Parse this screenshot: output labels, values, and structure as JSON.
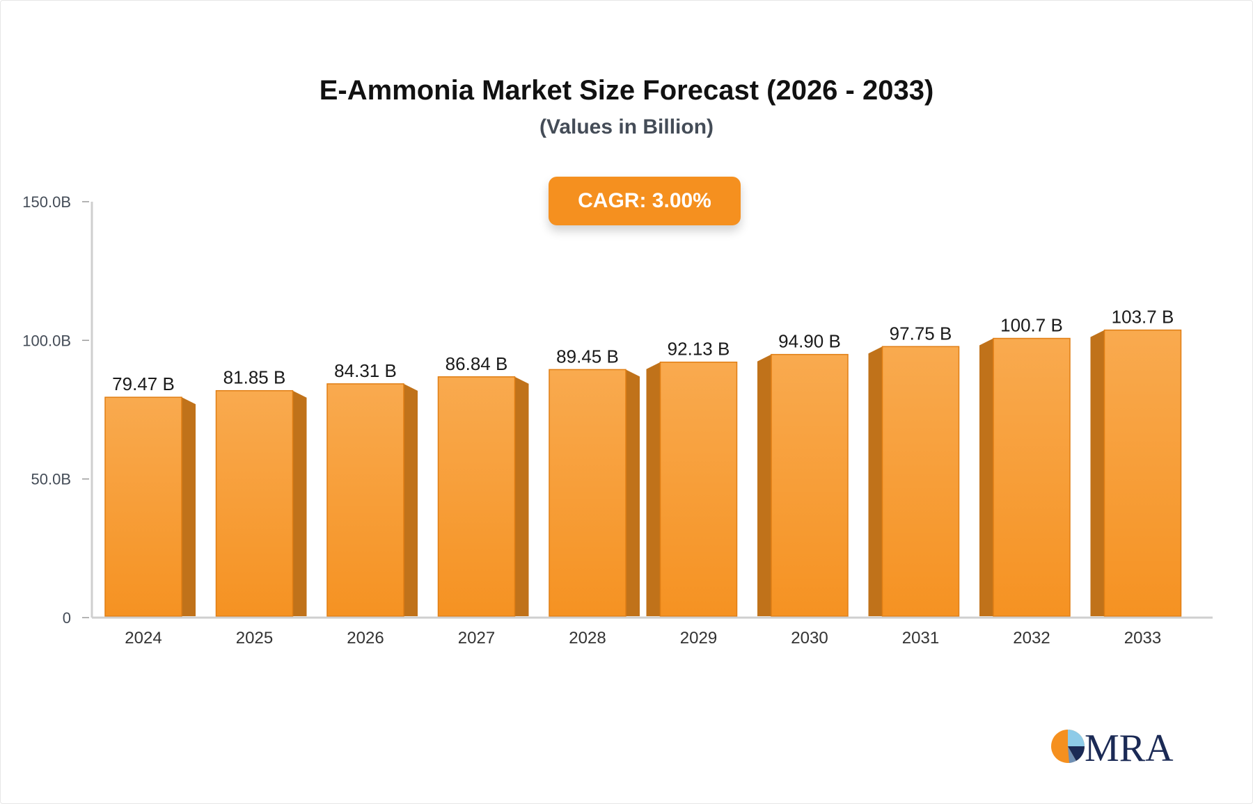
{
  "header": {
    "title": "E-Ammonia Market Size Forecast (2026 - 2033)",
    "subtitle": "(Values in Billion)"
  },
  "badge": {
    "cagr_label": "CAGR: 3.00%"
  },
  "brand": {
    "logo_text": "MRA",
    "colors": {
      "orange": "#f5901f",
      "navy": "#1b2a55",
      "light_blue": "#8ecbe8"
    }
  },
  "chart_data": {
    "type": "bar",
    "categories": [
      "2024",
      "2025",
      "2026",
      "2027",
      "2028",
      "2029",
      "2030",
      "2031",
      "2032",
      "2033"
    ],
    "values": [
      79.47,
      81.85,
      84.31,
      86.84,
      89.45,
      92.13,
      94.9,
      97.75,
      100.7,
      103.7
    ],
    "data_labels": [
      "79.47 B",
      "81.85 B",
      "84.31 B",
      "86.84 B",
      "89.45 B",
      "92.13 B",
      "94.90 B",
      "97.75 B",
      "100.7 B",
      "103.7 B"
    ],
    "y_ticks": [
      0,
      50,
      100,
      150
    ],
    "y_tick_labels": [
      "0",
      "50.0B",
      "100.0B",
      "150.0B"
    ],
    "ylim": [
      0,
      150
    ],
    "grid": false,
    "legend": "none",
    "colors": {
      "bar_top": "#f9aa4f",
      "bar_bottom": "#f59222",
      "bar_side": "#c0721a",
      "bar_edge": "#e07e14",
      "axis": "#cfcfcf"
    }
  }
}
